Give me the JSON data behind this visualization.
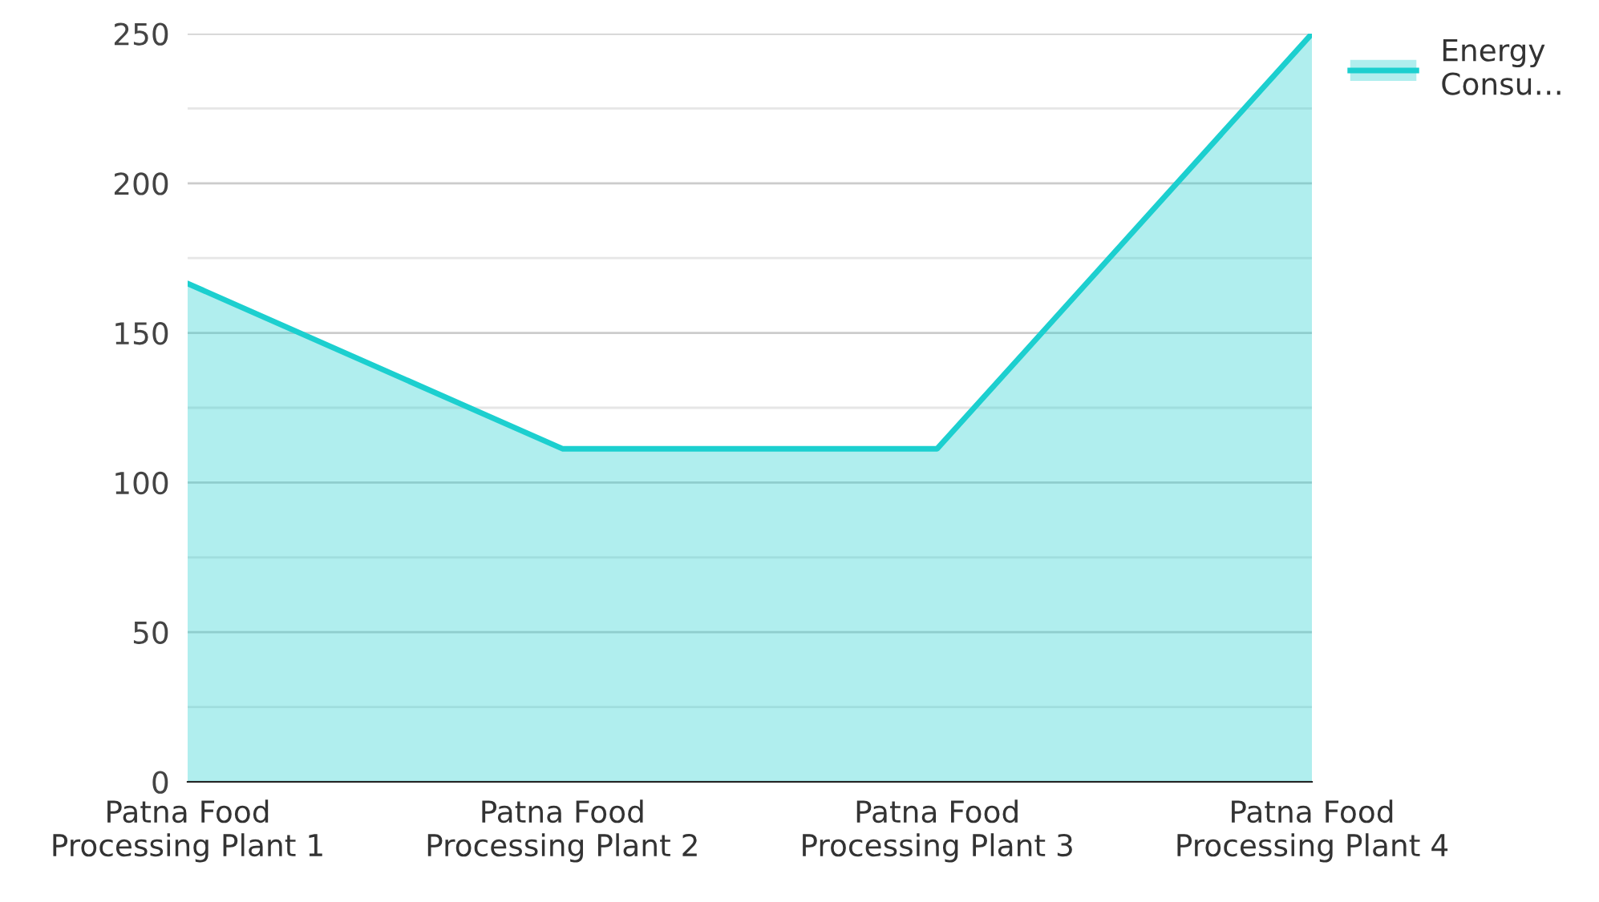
{
  "chart_data": {
    "type": "area",
    "categories": [
      "Patna Food Processing Plant 1",
      "Patna Food Processing Plant 2",
      "Patna Food Processing Plant 3",
      "Patna Food Processing Plant 4"
    ],
    "series": [
      {
        "name": "Energy Consu…",
        "color": "#1ccfcf",
        "values": [
          166.5,
          111.3,
          111.3,
          250
        ]
      }
    ],
    "ylim": [
      0,
      250
    ],
    "yticks": [
      0,
      {
        "value": 25,
        "label": null
      },
      50,
      {
        "value": 75,
        "label": null
      },
      100,
      {
        "value": 125,
        "label": null
      },
      150,
      {
        "value": 175,
        "label": null
      },
      200,
      {
        "value": 225,
        "label": null
      },
      250
    ],
    "grid": "y",
    "legend": "top right"
  }
}
